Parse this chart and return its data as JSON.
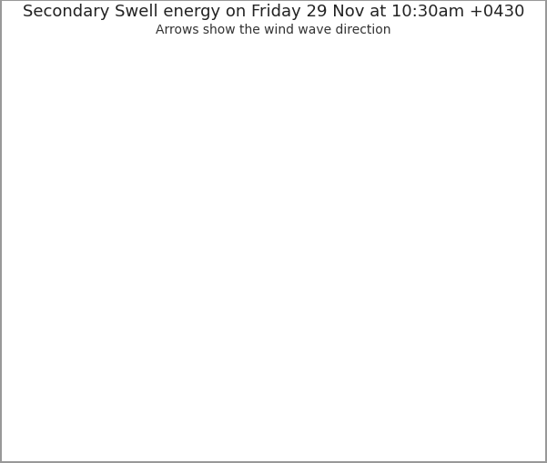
{
  "title": "Secondary Swell energy on Friday 29 Nov at 10:30am +0430",
  "subtitle": "Arrows show the wind wave direction",
  "title_fontsize": 13,
  "subtitle_fontsize": 10,
  "title_color": "#222222",
  "subtitle_color": "#333333",
  "background_color": "#ffffff",
  "header_bg": "#f0f0f0",
  "map_extent": [
    43.0,
    82.0,
    22.0,
    47.0
  ],
  "figsize": [
    6.01,
    5.1
  ],
  "dpi": 100
}
